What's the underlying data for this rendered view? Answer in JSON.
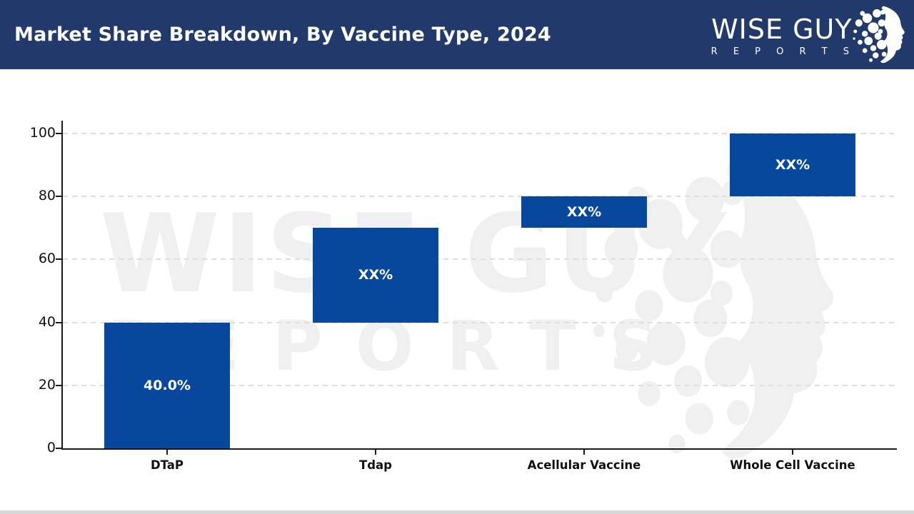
{
  "header": {
    "title": "Market Share Breakdown, By Vaccine Type, 2024",
    "logo": {
      "wordmark": "WISE GUY",
      "subtext": "R E P O R T S"
    }
  },
  "watermark": {
    "line1": "WISE GUY",
    "line2": "REPORTS"
  },
  "chart_data": {
    "type": "bar",
    "subtype": "waterfall",
    "title": "Market Share Breakdown, By Vaccine Type, 2024",
    "categories": [
      "DTaP",
      "Tdap",
      "Acellular Vaccine",
      "Whole Cell Vaccine"
    ],
    "bars": [
      {
        "category": "DTaP",
        "start": 0,
        "end": 40,
        "value": 40,
        "label": "40.0%"
      },
      {
        "category": "Tdap",
        "start": 40,
        "end": 70,
        "value": 30,
        "label": "XX%"
      },
      {
        "category": "Acellular Vaccine",
        "start": 70,
        "end": 80,
        "value": 10,
        "label": "XX%"
      },
      {
        "category": "Whole Cell Vaccine",
        "start": 80,
        "end": 100,
        "value": 20,
        "label": "XX%"
      },
      {
        "note": ""
      }
    ],
    "ylim": [
      0,
      100
    ],
    "yticks": [
      0,
      20,
      40,
      60,
      80,
      100
    ],
    "xlabel": "",
    "ylabel": "",
    "grid": "horizontal-dashed",
    "legend": "none",
    "colors": {
      "bar": "#07489c",
      "bar_label": "#ffffff",
      "header_bg": "#213a6b",
      "header_text": "#ffffff",
      "axis": "#1a1a1a",
      "gridline": "#dedede",
      "watermark": "#f0f0f1",
      "footer_strip": "#d8d8d8"
    }
  }
}
